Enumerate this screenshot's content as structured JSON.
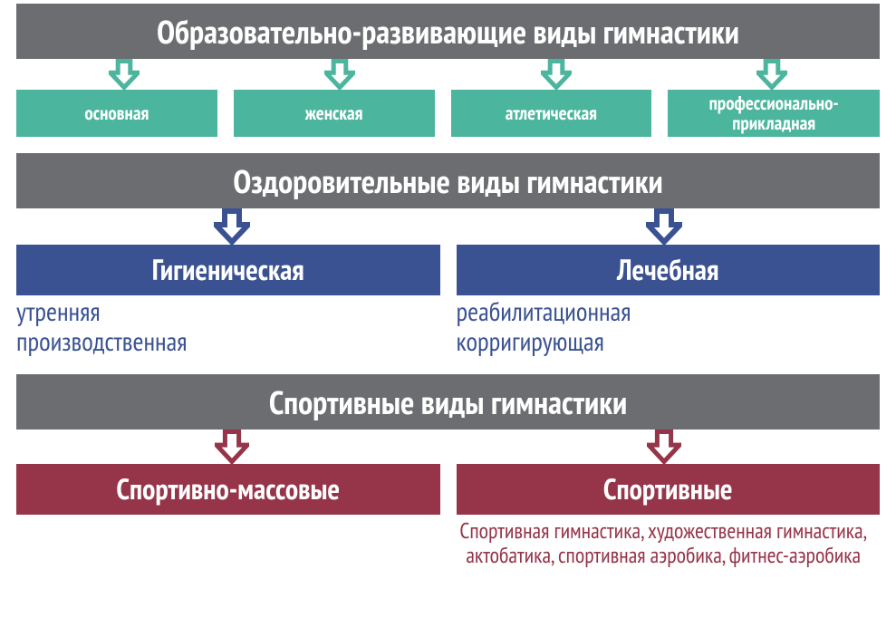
{
  "colors": {
    "header_bg": "#6b6d70",
    "header_text": "#ffffff",
    "teal_bg": "#4cb59d",
    "teal_text": "#ffffff",
    "teal_arrow_stroke": "#4cb59d",
    "teal_arrow_fill": "#ffffff",
    "blue_bg": "#3a5292",
    "blue_text": "#ffffff",
    "blue_arrow_stroke": "#3a5292",
    "blue_arrow_fill": "#ffffff",
    "blue_caption": "#3a5292",
    "maroon_bg": "#963449",
    "maroon_text": "#ffffff",
    "maroon_arrow_stroke": "#963449",
    "maroon_arrow_fill": "#ffffff",
    "maroon_caption": "#963449",
    "page_bg": "#ffffff"
  },
  "typography": {
    "header_fontsize": 36,
    "header_pad_v": 7,
    "sec1_child_fontsize": 21,
    "sec1_child_height": 52,
    "sec1_arrow_w": 34,
    "sec1_arrow_h": 34,
    "sec2_child_fontsize": 32,
    "sec2_child_height": 56,
    "sec2_arrow_w": 40,
    "sec2_arrow_h": 40,
    "sec2_caption_fontsize": 29,
    "sec3_child_fontsize": 32,
    "sec3_child_height": 56,
    "sec3_arrow_w": 38,
    "sec3_arrow_h": 38,
    "sec3_caption_fontsize": 24,
    "section_spacing": 18
  },
  "sections": [
    {
      "id": "edu",
      "title": "Образовательно-развивающие виды гимнастики",
      "color_scheme": "teal",
      "children": [
        {
          "label": "основная"
        },
        {
          "label": "женская"
        },
        {
          "label": "атлетическая"
        },
        {
          "label": "профессионально-прикладная"
        }
      ]
    },
    {
      "id": "health",
      "title": "Оздоровительные виды гимнастики",
      "color_scheme": "blue",
      "children": [
        {
          "label": "Гигиеническая",
          "caption": "утренняя\nпроизводственная"
        },
        {
          "label": "Лечебная",
          "caption": "реабилитационная\nкорригирующая"
        }
      ]
    },
    {
      "id": "sport",
      "title": "Спортивные виды гимнастики",
      "color_scheme": "maroon",
      "children": [
        {
          "label": "Спортивно-массовые"
        },
        {
          "label": "Спортивные",
          "caption": "Спортивная гимнастика, художественная гимнастика, актобатика, спортивная аэробика, фитнес-аэробика"
        }
      ]
    }
  ]
}
